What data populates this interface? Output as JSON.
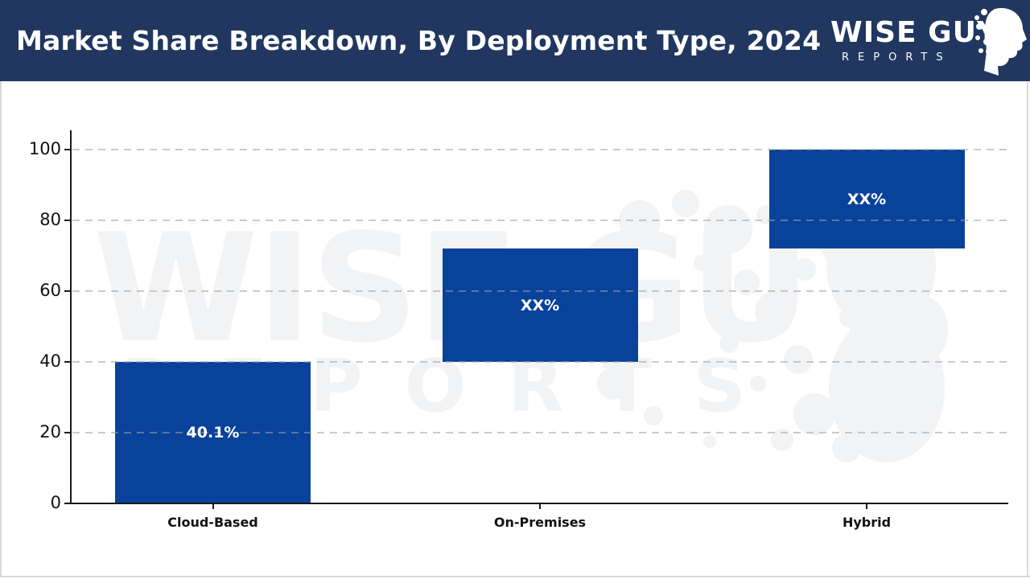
{
  "header": {
    "title": "Market Share Breakdown, By Deployment Type, 2024",
    "logo": {
      "wordmark": "WISE GUY",
      "subtitle": "REPORTS",
      "face_icon": "dotted-face-profile"
    }
  },
  "watermark": {
    "line1": "WISE GUY",
    "line2": "REPORTS",
    "face_icon": "dotted-face-profile"
  },
  "colors": {
    "header_bg": "#213760",
    "bar_fill": "#09429b",
    "bar_label_text": "#ffffff",
    "axis": "#1a1a1a",
    "tick_label": "#111111",
    "watermark": "#f2f3f5",
    "frame_border": "#d9d9d9",
    "background": "#ffffff"
  },
  "chart_data": {
    "type": "bar",
    "subtype": "floating-stacked-breakdown",
    "title": "Market Share Breakdown, By Deployment Type, 2024",
    "categories": [
      "Cloud-Based",
      "On-Premises",
      "Hybrid"
    ],
    "bars": [
      {
        "category": "Cloud-Based",
        "label": "40.1%",
        "start": 0,
        "end": 40.1
      },
      {
        "category": "On-Premises",
        "label": "XX%",
        "start": 40,
        "end": 72
      },
      {
        "category": "Hybrid",
        "label": "XX%",
        "start": 72,
        "end": 100
      }
    ],
    "xlabel": "",
    "ylabel": "",
    "ylim": [
      0,
      100
    ],
    "yticks": [
      0,
      20,
      40,
      60,
      80,
      100
    ],
    "grid": "horizontal-dashed",
    "grid_above_bars": true,
    "legend": "none"
  }
}
